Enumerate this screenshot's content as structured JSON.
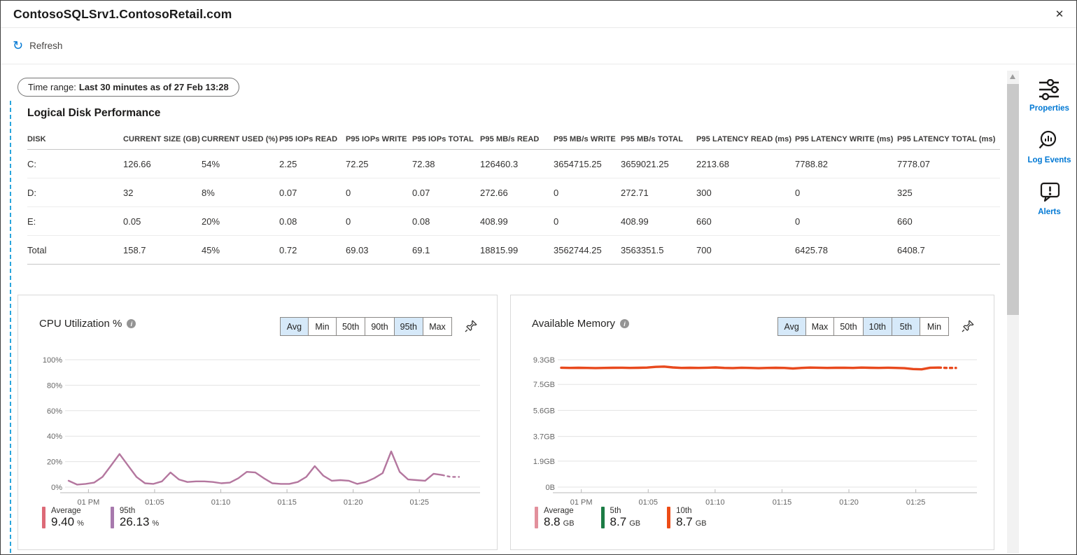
{
  "window": {
    "title": "ContosoSQLSrv1.ContosoRetail.com",
    "close_glyph": "✕"
  },
  "toolbar": {
    "refresh_label": "Refresh",
    "refresh_glyph": "↻"
  },
  "time_range": {
    "prefix": "Time range:",
    "value": "Last 30 minutes as of 27 Feb 13:28"
  },
  "disk_table": {
    "title": "Logical Disk Performance",
    "columns": [
      "DISK",
      "CURRENT SIZE (GB)",
      "CURRENT USED (%)",
      "P95 IOPs READ",
      "P95 IOPs WRITE",
      "P95 IOPs TOTAL",
      "P95 MB/s READ",
      "P95 MB/s WRITE",
      "P95 MB/s TOTAL",
      "P95 LATENCY READ (ms)",
      "P95 LATENCY WRITE (ms)",
      "P95 LATENCY TOTAL (ms)"
    ],
    "rows": [
      [
        "C:",
        "126.66",
        "54%",
        "2.25",
        "72.25",
        "72.38",
        "126460.3",
        "3654715.25",
        "3659021.25",
        "2213.68",
        "7788.82",
        "7778.07"
      ],
      [
        "D:",
        "32",
        "8%",
        "0.07",
        "0",
        "0.07",
        "272.66",
        "0",
        "272.71",
        "300",
        "0",
        "325"
      ],
      [
        "E:",
        "0.05",
        "20%",
        "0.08",
        "0",
        "0.08",
        "408.99",
        "0",
        "408.99",
        "660",
        "0",
        "660"
      ],
      [
        "Total",
        "158.7",
        "45%",
        "0.72",
        "69.03",
        "69.1",
        "18815.99",
        "3562744.25",
        "3563351.5",
        "700",
        "6425.78",
        "6408.7"
      ]
    ]
  },
  "sidebar": {
    "items": [
      {
        "label": "Properties",
        "icon": "sliders-icon"
      },
      {
        "label": "Log Events",
        "icon": "search-chart-icon"
      },
      {
        "label": "Alerts",
        "icon": "alert-bubble-icon"
      }
    ]
  },
  "accent_colors": {
    "link_blue": "#0078d4",
    "selected_toggle": "#d6e9f9",
    "dashed_edit_border": "#2aa5dc"
  },
  "chart_data": [
    {
      "type": "line",
      "name": "cpu-utilization-chart",
      "title": "CPU Utilization %",
      "aggregation_buttons": [
        {
          "label": "Avg",
          "selected": true
        },
        {
          "label": "Min",
          "selected": false
        },
        {
          "label": "50th",
          "selected": false
        },
        {
          "label": "90th",
          "selected": false
        },
        {
          "label": "95th",
          "selected": true
        },
        {
          "label": "Max",
          "selected": false
        }
      ],
      "legend": [
        {
          "label": "Average",
          "value": "9.40",
          "unit": "%",
          "color": "#dd6a77"
        },
        {
          "label": "95th",
          "value": "26.13",
          "unit": "%",
          "color": "#a779ad"
        }
      ],
      "line_color": "#b4779f",
      "line_width": 2.4,
      "ylim": [
        0,
        100
      ],
      "y_ticks": [
        {
          "value": 100,
          "label": "100%"
        },
        {
          "value": 80,
          "label": "80%"
        },
        {
          "value": 60,
          "label": "60%"
        },
        {
          "value": 40,
          "label": "40%"
        },
        {
          "value": 20,
          "label": "20%"
        },
        {
          "value": 0,
          "label": "0%"
        }
      ],
      "x_span_minutes": 29.5,
      "x_ticks": [
        {
          "minute": 1.5,
          "label": "01 PM"
        },
        {
          "minute": 6.5,
          "label": "01:05"
        },
        {
          "minute": 11.5,
          "label": "01:10"
        },
        {
          "minute": 16.5,
          "label": "01:15"
        },
        {
          "minute": 21.5,
          "label": "01:20"
        },
        {
          "minute": 26.5,
          "label": "01:25"
        }
      ],
      "values": [
        5,
        2,
        2.5,
        3.5,
        8,
        17,
        26,
        17,
        8,
        3,
        2.5,
        4.5,
        11.5,
        6,
        4,
        4.5,
        4.5,
        4,
        3,
        3.5,
        7,
        12,
        11.5,
        7,
        3,
        2.5,
        2.5,
        4,
        8,
        16.5,
        9,
        5,
        5.5,
        5,
        2.5,
        4,
        7,
        11,
        28,
        12,
        6,
        5.5,
        5,
        10.5,
        9.5,
        8,
        8
      ],
      "dashed_tail_points": 3
    },
    {
      "type": "line",
      "name": "available-memory-chart",
      "title": "Available Memory",
      "aggregation_buttons": [
        {
          "label": "Avg",
          "selected": true
        },
        {
          "label": "Max",
          "selected": false
        },
        {
          "label": "50th",
          "selected": false
        },
        {
          "label": "10th",
          "selected": true
        },
        {
          "label": "5th",
          "selected": true
        },
        {
          "label": "Min",
          "selected": false
        }
      ],
      "legend": [
        {
          "label": "Average",
          "value": "8.8",
          "unit": "GB",
          "color": "#e2909c"
        },
        {
          "label": "5th",
          "value": "8.7",
          "unit": "GB",
          "color": "#1c7c45"
        },
        {
          "label": "10th",
          "value": "8.7",
          "unit": "GB",
          "color": "#ed4c16"
        }
      ],
      "line_color": "#e8491d",
      "line_width": 3.4,
      "ylim": [
        0,
        9.3
      ],
      "y_ticks": [
        {
          "value": 9.3,
          "label": "9.3GB"
        },
        {
          "value": 7.5,
          "label": "7.5GB"
        },
        {
          "value": 5.6,
          "label": "5.6GB"
        },
        {
          "value": 3.7,
          "label": "3.7GB"
        },
        {
          "value": 1.9,
          "label": "1.9GB"
        },
        {
          "value": 0,
          "label": "0B"
        }
      ],
      "x_span_minutes": 29.5,
      "x_ticks": [
        {
          "minute": 1.5,
          "label": "01 PM"
        },
        {
          "minute": 6.5,
          "label": "01:05"
        },
        {
          "minute": 11.5,
          "label": "01:10"
        },
        {
          "minute": 16.5,
          "label": "01:15"
        },
        {
          "minute": 21.5,
          "label": "01:20"
        },
        {
          "minute": 26.5,
          "label": "01:25"
        }
      ],
      "values": [
        8.72,
        8.7,
        8.71,
        8.7,
        8.69,
        8.7,
        8.71,
        8.72,
        8.7,
        8.71,
        8.73,
        8.78,
        8.8,
        8.74,
        8.7,
        8.71,
        8.7,
        8.72,
        8.74,
        8.7,
        8.69,
        8.72,
        8.7,
        8.68,
        8.7,
        8.71,
        8.7,
        8.66,
        8.7,
        8.73,
        8.72,
        8.7,
        8.71,
        8.72,
        8.7,
        8.73,
        8.71,
        8.7,
        8.72,
        8.7,
        8.68,
        8.62,
        8.6,
        8.72,
        8.73,
        8.7,
        8.7
      ],
      "dashed_tail_points": 3
    }
  ]
}
